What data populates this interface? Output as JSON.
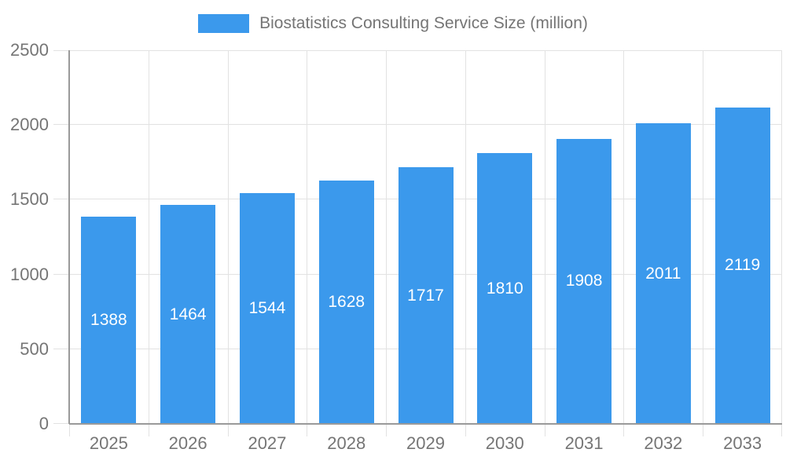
{
  "legend": {
    "label": "Biostatistics Consulting Service Size (million)"
  },
  "chart_data": {
    "type": "bar",
    "title": "Biostatistics Consulting Service Size (million)",
    "categories": [
      "2025",
      "2026",
      "2027",
      "2028",
      "2029",
      "2030",
      "2031",
      "2032",
      "2033"
    ],
    "values": [
      1388,
      1464,
      1544,
      1628,
      1717,
      1810,
      1908,
      2011,
      2119
    ],
    "series": [
      {
        "name": "Biostatistics Consulting Service Size (million)",
        "values": [
          1388,
          1464,
          1544,
          1628,
          1717,
          1810,
          1908,
          2011,
          2119
        ]
      }
    ],
    "xlabel": "",
    "ylabel": "",
    "ylim": [
      0,
      2500
    ],
    "yticks": [
      0,
      500,
      1000,
      1500,
      2000,
      2500
    ],
    "grid": true,
    "legend_position": "top",
    "value_labels": "inside-center",
    "colors": {
      "bar": "#3b99ec",
      "gridline": "#e2e2e2",
      "axis_line": "#9a9a9a",
      "tick_text": "#757575",
      "value_label_text": "#ffffff",
      "background": "#ffffff"
    }
  }
}
